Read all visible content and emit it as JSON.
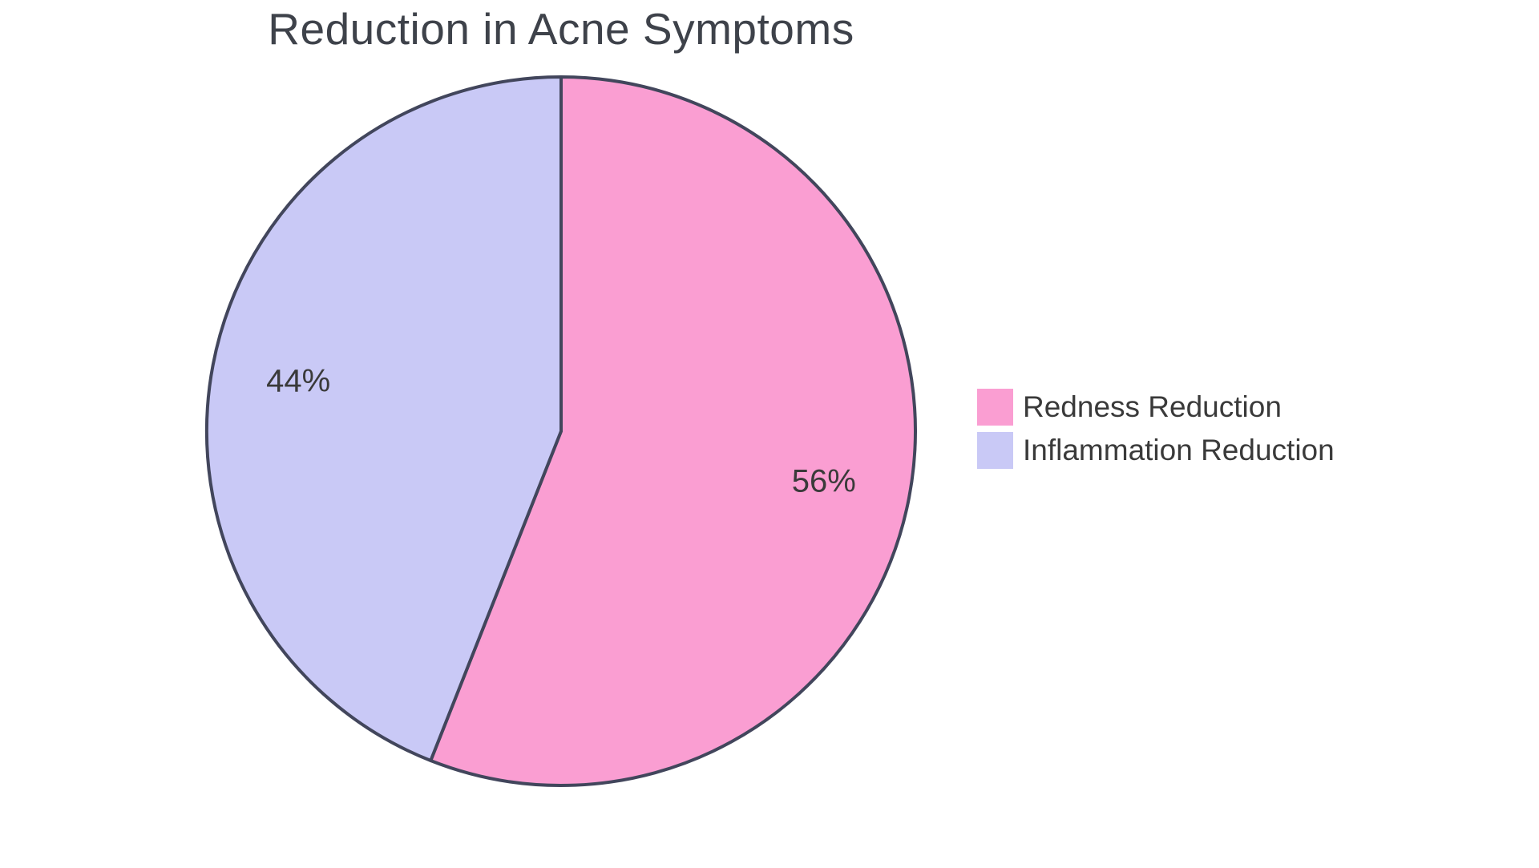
{
  "chart_data": {
    "type": "pie",
    "title": "Reduction in Acne Symptoms",
    "slices": [
      {
        "label": "Redness Reduction",
        "value": 56,
        "pct_text": "56%",
        "color": "#FA9ED2"
      },
      {
        "label": "Inflammation Reduction",
        "value": 44,
        "pct_text": "44%",
        "color": "#C9C9F6"
      }
    ],
    "start_angle_deg": 0,
    "direction": "clockwise",
    "stroke_color": "#42465C",
    "label_color": "#3A3A3A",
    "title_color": "#3E424A",
    "background": "#FFFFFF",
    "legend_position": "right"
  }
}
